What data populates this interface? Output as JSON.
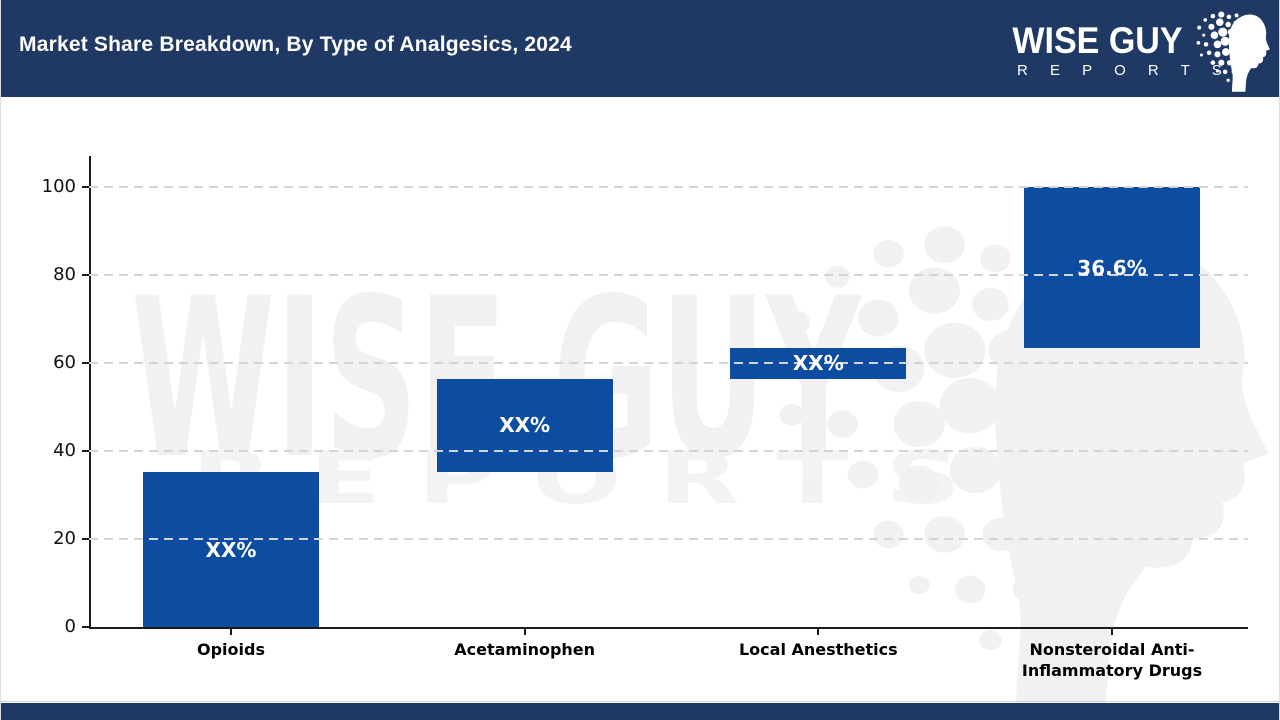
{
  "header": {
    "title": "Market Share Breakdown, By Type of Analgesics, 2024",
    "logo": {
      "line1": "WISE GUY",
      "line2": "R E P O R T S"
    }
  },
  "watermark": {
    "line1": "WISE GUY",
    "line2": "R E P O R T S"
  },
  "colors": {
    "header_bg": "#1F3864",
    "footer_bg": "#1F3864",
    "bar": "#0C4DA2",
    "bar_label": "#FFFFFF",
    "gridline": "#D4D4D4",
    "axis": "#1A1A1A",
    "watermark": "#F1F1F3"
  },
  "chart_data": {
    "type": "bar",
    "subtype": "waterfall",
    "title": "Market Share Breakdown, By Type of Analgesics, 2024",
    "categories": [
      "Opioids",
      "Acetaminophen",
      "Local Anesthetics",
      "Nonsteroidal Anti-Inflammatory Drugs"
    ],
    "series": [
      {
        "name": "Market Share (%)",
        "segments": [
          {
            "category": "Opioids",
            "start": 0,
            "end": 35.2,
            "label": "XX%"
          },
          {
            "category": "Acetaminophen",
            "start": 35.2,
            "end": 56.4,
            "label": "XX%"
          },
          {
            "category": "Local Anesthetics",
            "start": 56.4,
            "end": 63.4,
            "label": "XX%"
          },
          {
            "category": "Nonsteroidal Anti-Inflammatory Drugs",
            "start": 63.4,
            "end": 100,
            "label": "36.6%"
          }
        ]
      }
    ],
    "yticks": [
      0,
      20,
      40,
      60,
      80,
      100
    ],
    "ylim": [
      0,
      107
    ],
    "xlabel": "",
    "ylabel": "",
    "grid": "horizontal-dashed-over-bars",
    "legend": "none"
  }
}
